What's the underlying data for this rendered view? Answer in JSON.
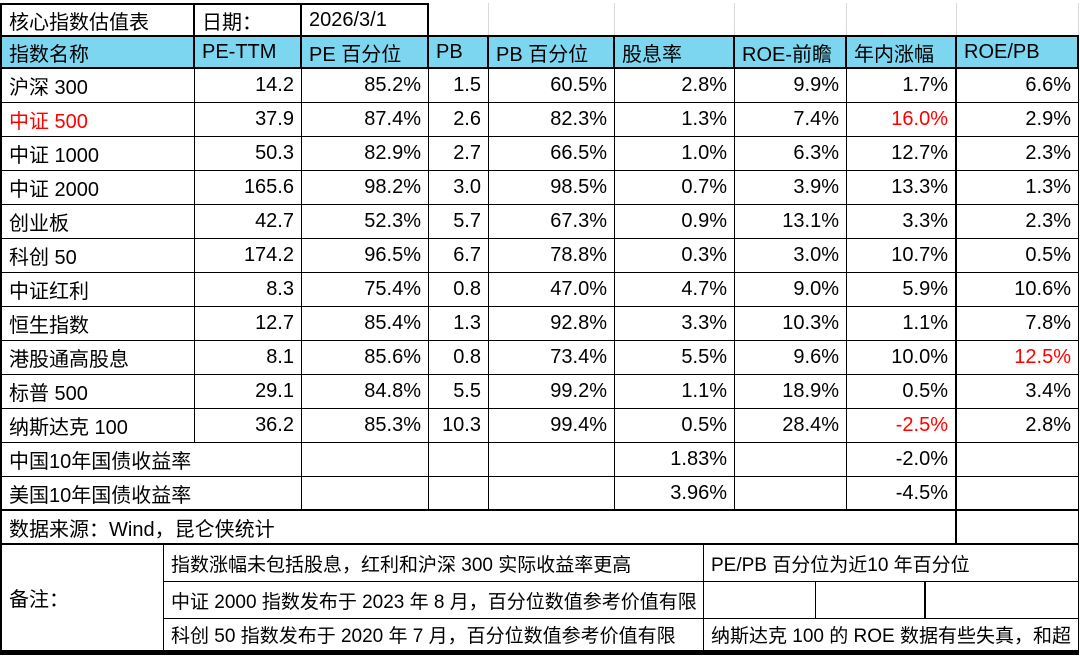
{
  "title_row": {
    "title": "核心指数估值表",
    "date_label": "日期：",
    "date_value": "2026/3/1"
  },
  "header": {
    "columns": [
      "指数名称",
      "PE-TTM",
      "PE 百分位",
      "PB",
      "PB 百分位",
      "股息率",
      "ROE-前瞻",
      "年内涨幅",
      "ROE/PB"
    ]
  },
  "index_rows": [
    {
      "name": "沪深 300",
      "values": [
        "14.2",
        "85.2%",
        "1.5",
        "60.5%",
        "2.8%",
        "9.9%",
        "1.7%",
        "6.6%"
      ]
    },
    {
      "name": "中证 500",
      "name_red": true,
      "red_cols": [
        6
      ],
      "values": [
        "37.9",
        "87.4%",
        "2.6",
        "82.3%",
        "1.3%",
        "7.4%",
        "16.0%",
        "2.9%"
      ]
    },
    {
      "name": "中证 1000",
      "values": [
        "50.3",
        "82.9%",
        "2.7",
        "66.5%",
        "1.0%",
        "6.3%",
        "12.7%",
        "2.3%"
      ]
    },
    {
      "name": "中证 2000",
      "values": [
        "165.6",
        "98.2%",
        "3.0",
        "98.5%",
        "0.7%",
        "3.9%",
        "13.3%",
        "1.3%"
      ]
    },
    {
      "name": "创业板",
      "values": [
        "42.7",
        "52.3%",
        "5.7",
        "67.3%",
        "0.9%",
        "13.1%",
        "3.3%",
        "2.3%"
      ]
    },
    {
      "name": "科创 50",
      "values": [
        "174.2",
        "96.5%",
        "6.7",
        "78.8%",
        "0.3%",
        "3.0%",
        "10.7%",
        "0.5%"
      ]
    },
    {
      "name": "中证红利",
      "values": [
        "8.3",
        "75.4%",
        "0.8",
        "47.0%",
        "4.7%",
        "9.0%",
        "5.9%",
        "10.6%"
      ]
    },
    {
      "name": "恒生指数",
      "values": [
        "12.7",
        "85.4%",
        "1.3",
        "92.8%",
        "3.3%",
        "10.3%",
        "1.1%",
        "7.8%"
      ]
    },
    {
      "name": "港股通高股息",
      "red_cols": [
        7
      ],
      "values": [
        "8.1",
        "85.6%",
        "0.8",
        "73.4%",
        "5.5%",
        "9.6%",
        "10.0%",
        "12.5%"
      ]
    },
    {
      "name": "标普 500",
      "values": [
        "29.1",
        "84.8%",
        "5.5",
        "99.2%",
        "1.1%",
        "18.9%",
        "0.5%",
        "3.4%"
      ]
    },
    {
      "name": "纳斯达克 100",
      "red_cols": [
        6
      ],
      "values": [
        "36.2",
        "85.3%",
        "10.3",
        "99.4%",
        "0.5%",
        "28.4%",
        "-2.5%",
        "2.8%"
      ]
    }
  ],
  "bond_rows": [
    {
      "name": "中国10年国债收益率",
      "dividend_yield": "1.83%",
      "ytd_change": "-2.0%"
    },
    {
      "name": "美国10年国债收益率",
      "dividend_yield": "3.96%",
      "ytd_change": "-4.5%"
    }
  ],
  "source_row": {
    "text": "数据来源：Wind，昆仑侠统计"
  },
  "notes": {
    "label": "备注：",
    "left": [
      "指数涨幅未包括股息，红利和沪深 300 实际收益率更高",
      "中证 2000 指数发布于 2023 年 8 月，百分位数值参考价值有限",
      "科创 50 指数发布于 2020 年 7 月，百分位数值参考价值有限"
    ],
    "right": [
      "PE/PB 百分位为近10 年百分位",
      "",
      "纳斯达克 100 的 ROE 数据有些失真，和超"
    ]
  },
  "colors": {
    "header_bg": "#7CD6F0",
    "highlight_red": "#FF0000",
    "grid_line": "#000000",
    "faint_grid": "#D9D9D9"
  }
}
